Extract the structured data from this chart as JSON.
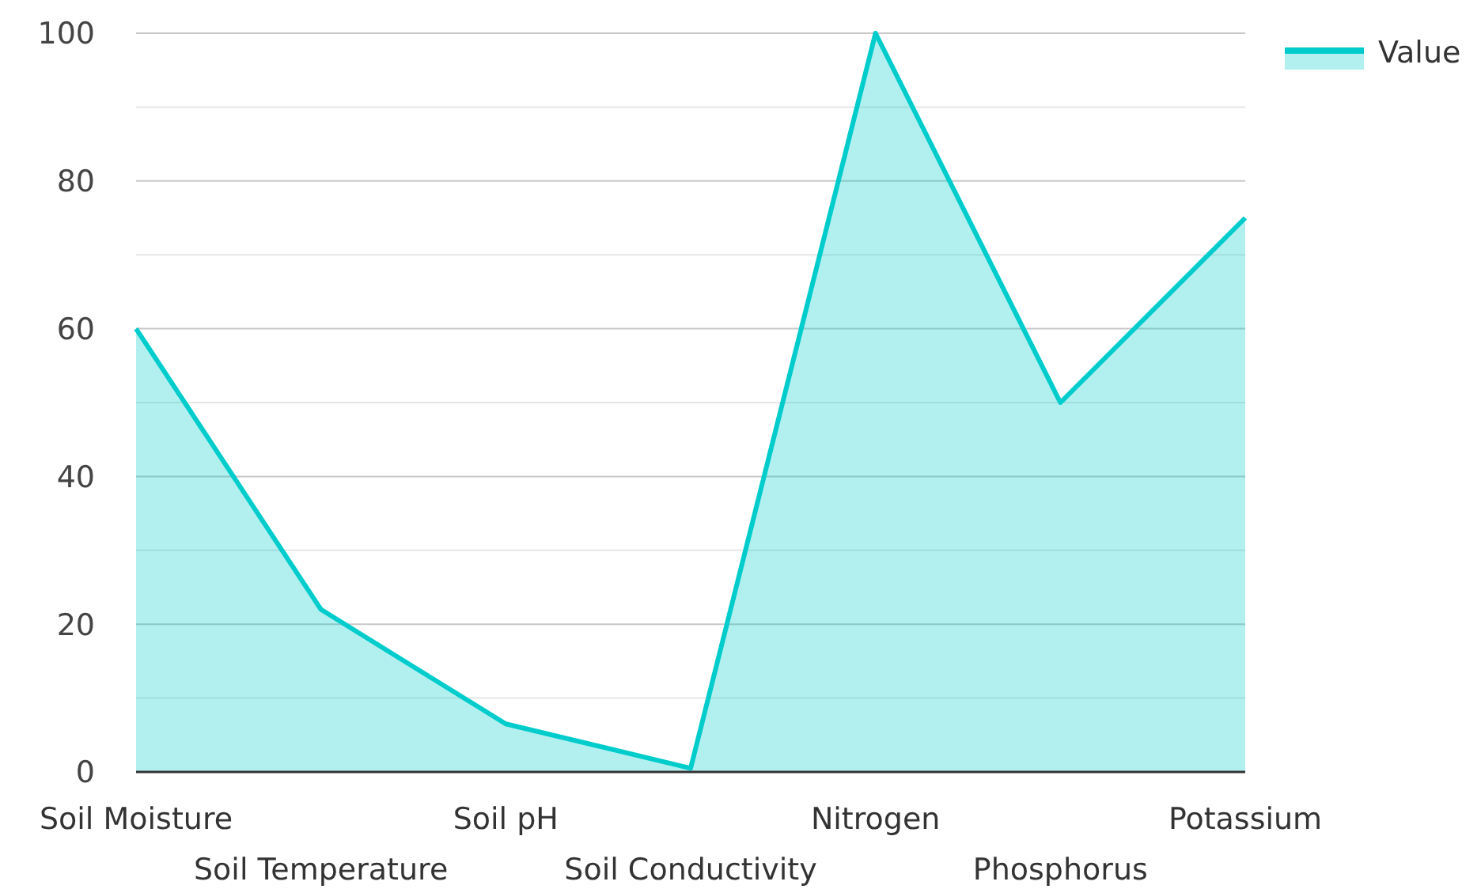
{
  "chart_data": {
    "type": "area",
    "categories": [
      "Soil Moisture",
      "Soil Temperature",
      "Soil pH",
      "Soil Conductivity",
      "Nitrogen",
      "Phosphorus",
      "Potassium"
    ],
    "series": [
      {
        "name": "Value",
        "color": "#00cccc",
        "values": [
          60,
          22,
          6.5,
          0.5,
          100,
          50,
          75
        ]
      }
    ],
    "ylim": [
      0,
      100
    ],
    "yticks": [
      0,
      {
        "value": 10,
        "label": null
      },
      20,
      {
        "value": 30,
        "label": null
      },
      40,
      {
        "value": 50,
        "label": null
      },
      60,
      {
        "value": 70,
        "label": null
      },
      80,
      {
        "value": 90,
        "label": null
      },
      100
    ],
    "grid": "y",
    "legend": "top right"
  }
}
